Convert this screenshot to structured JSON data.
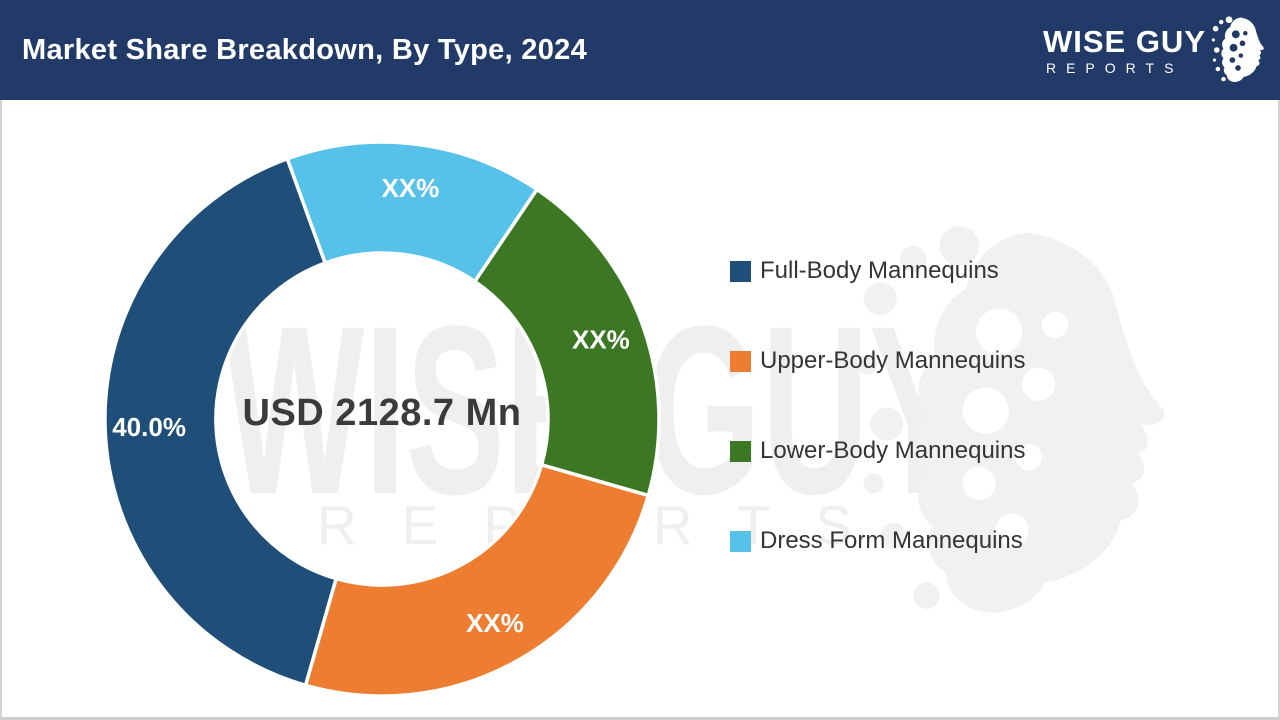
{
  "header": {
    "title": "Market Share Breakdown, By Type, 2024",
    "background_color": "#223A68",
    "logo": {
      "line1": "WISE GUY",
      "line2": "REPORTS"
    }
  },
  "watermark": {
    "line1": "WISE GUY",
    "line2": "REPORTS"
  },
  "chart_data": {
    "type": "pie",
    "subtype": "donut",
    "title": "Market Share Breakdown, By Type, 2024",
    "center_label": "USD 2128.7 Mn",
    "start_angle_deg": 110,
    "direction": "counterclockwise",
    "legend_position": "right",
    "gap_color": "#FFFFFF",
    "segments": [
      {
        "label": "Full-Body Mannequins",
        "display_pct": "40.0%",
        "approx_pct": 40,
        "color": "#1F4E79"
      },
      {
        "label": "Upper-Body Mannequins",
        "display_pct": "XX%",
        "approx_pct": 25,
        "color": "#ED7D31"
      },
      {
        "label": "Lower-Body Mannequins",
        "display_pct": "XX%",
        "approx_pct": 20,
        "color": "#3C7823"
      },
      {
        "label": "Dress Form Mannequins",
        "display_pct": "XX%",
        "approx_pct": 15,
        "color": "#56C2EA"
      }
    ]
  }
}
